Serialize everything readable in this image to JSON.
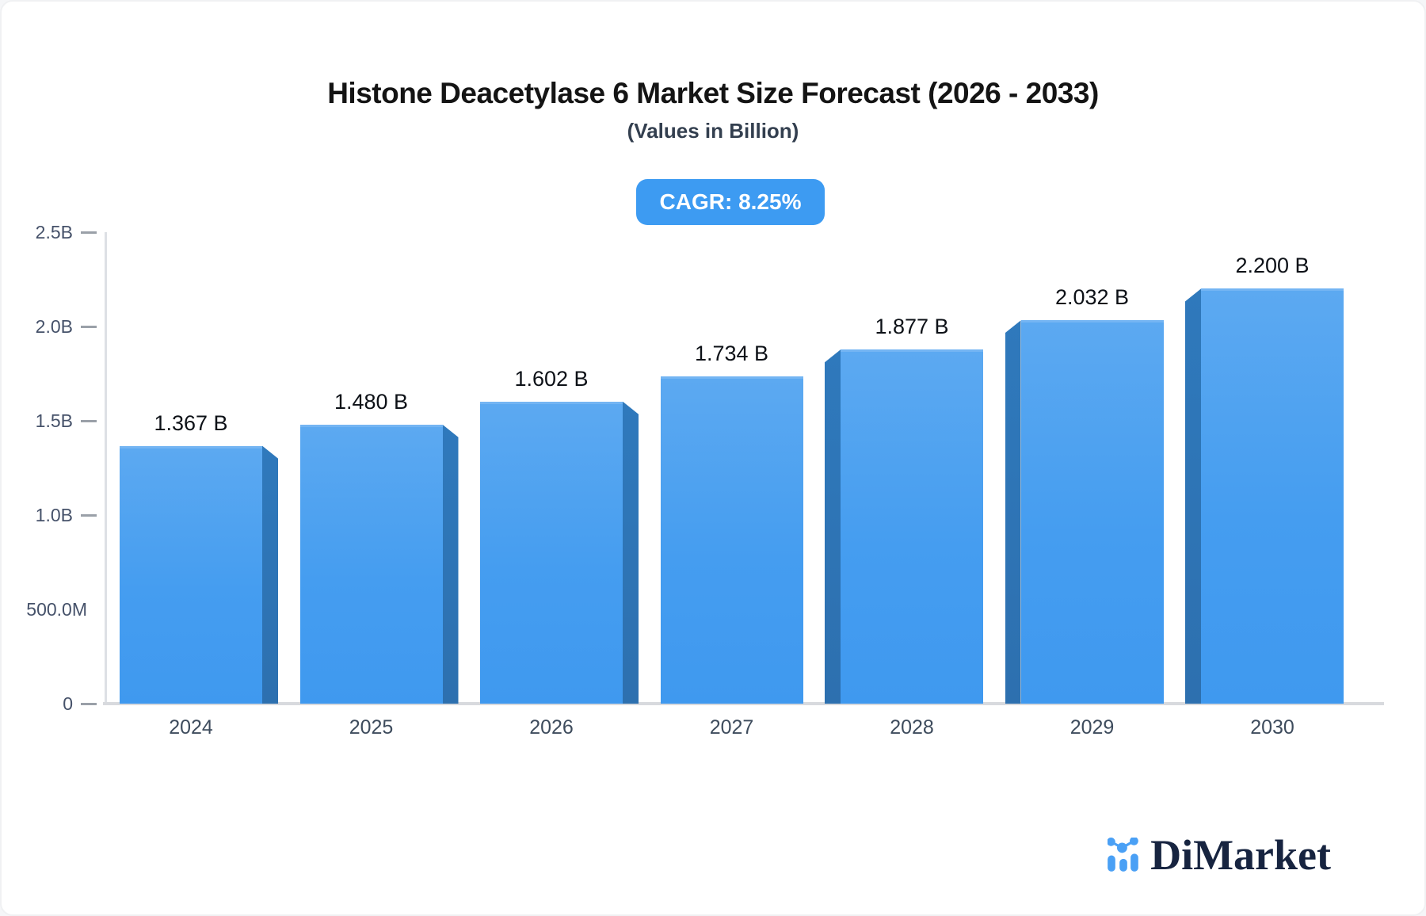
{
  "header": {
    "cagr_label": "CAGR: 8.25%"
  },
  "chart_data": {
    "type": "bar",
    "title": "Histone Deacetylase 6 Market Size Forecast (2026 - 2033)",
    "subtitle": "(Values in Billion)",
    "cagr": "8.25%",
    "categories": [
      "2024",
      "2025",
      "2026",
      "2027",
      "2028",
      "2029",
      "2030"
    ],
    "values": [
      1.367,
      1.48,
      1.602,
      1.734,
      1.877,
      2.032,
      2.2
    ],
    "bar_labels": [
      "1.367 B",
      "1.480 B",
      "1.602 B",
      "1.734 B",
      "1.877 B",
      "2.032 B",
      "2.200 B"
    ],
    "unit": "Billion",
    "xlabel": "",
    "ylabel": "",
    "ylim": [
      0,
      2.5
    ],
    "yticks": [
      {
        "label": "2.5B",
        "value": 2.5,
        "dash": true
      },
      {
        "label": "2.0B",
        "value": 2.0,
        "dash": true
      },
      {
        "label": "1.5B",
        "value": 1.5,
        "dash": true
      },
      {
        "label": "1.0B",
        "value": 1.0,
        "dash": true
      },
      {
        "label": "500.0M",
        "value": 0.5,
        "dash": false
      },
      {
        "label": "0",
        "value": 0.0,
        "dash": true
      }
    ],
    "grid": false,
    "legend": "none"
  },
  "colors": {
    "bar_face": "#459df0",
    "bar_side": "#2d73b3",
    "badge_bg": "#3d9bf2",
    "badge_text": "#ffffff",
    "axis_line": "#dde0e5",
    "baseline": "#d8dade",
    "tick_dash": "#9aa0a8",
    "title_text": "#141414",
    "logo_blue": "#4aa0f5",
    "logo_navy": "#172440"
  },
  "logo": {
    "text": "DiMarket",
    "icon": "mini-bar-chart-with-dots-icon"
  }
}
